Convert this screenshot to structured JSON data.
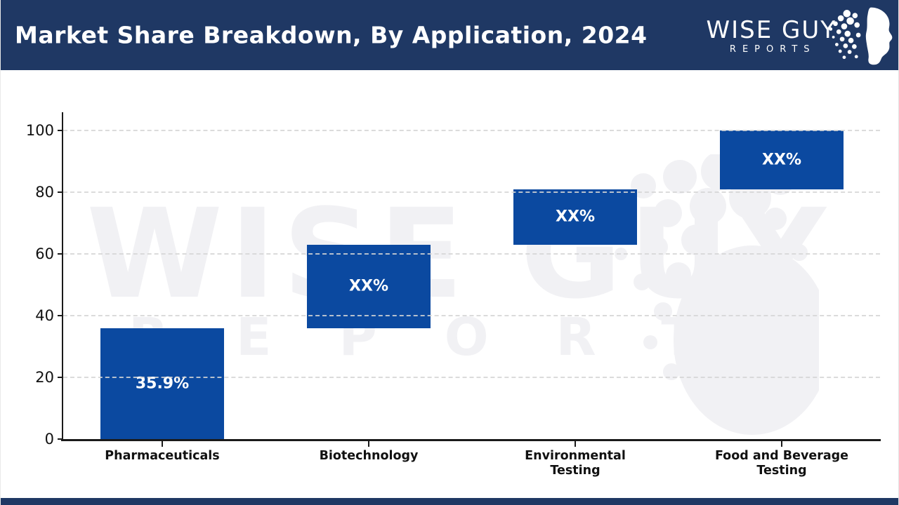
{
  "header": {
    "title": "Market Share Breakdown, By Application, 2024",
    "logo": {
      "line1": "WISE GUY",
      "line2": "REPORTS"
    }
  },
  "watermark": {
    "line1": "WISE GUY",
    "line2": "REPORTS"
  },
  "chart_data": {
    "type": "bar",
    "subtype": "waterfall-stacked-percentage",
    "title": "Market Share Breakdown, By Application, 2024",
    "categories": [
      "Pharmaceuticals",
      "Biotechnology",
      "Environmental Testing",
      "Food and Beverage Testing"
    ],
    "category_label_lines": [
      [
        "Pharmaceuticals"
      ],
      [
        "Biotechnology"
      ],
      [
        "Environmental",
        "Testing"
      ],
      [
        "Food and Beverage",
        "Testing"
      ]
    ],
    "segments": [
      {
        "category": "Pharmaceuticals",
        "start": 0,
        "end": 35.9,
        "label": "35.9%"
      },
      {
        "category": "Biotechnology",
        "start": 35.9,
        "end": 63.0,
        "label": "XX%"
      },
      {
        "category": "Environmental Testing",
        "start": 63.0,
        "end": 80.9,
        "label": "XX%"
      },
      {
        "category": "Food and Beverage Testing",
        "start": 80.9,
        "end": 100,
        "label": "XX%"
      }
    ],
    "yticks": [
      0,
      20,
      40,
      60,
      80,
      100
    ],
    "ylim": [
      0,
      106
    ],
    "xlabel": "",
    "ylabel": "",
    "grid": "horizontal-dashed",
    "legend": "none",
    "bar_color": "#0B49A0",
    "value_label_color": "#FFFFFF"
  },
  "colors": {
    "banner_navy": "#1F3864",
    "bar_blue": "#0B49A0",
    "gridline": "#D9D9D9",
    "axis": "#1A1A1A",
    "watermark": "#F1F1F4"
  }
}
